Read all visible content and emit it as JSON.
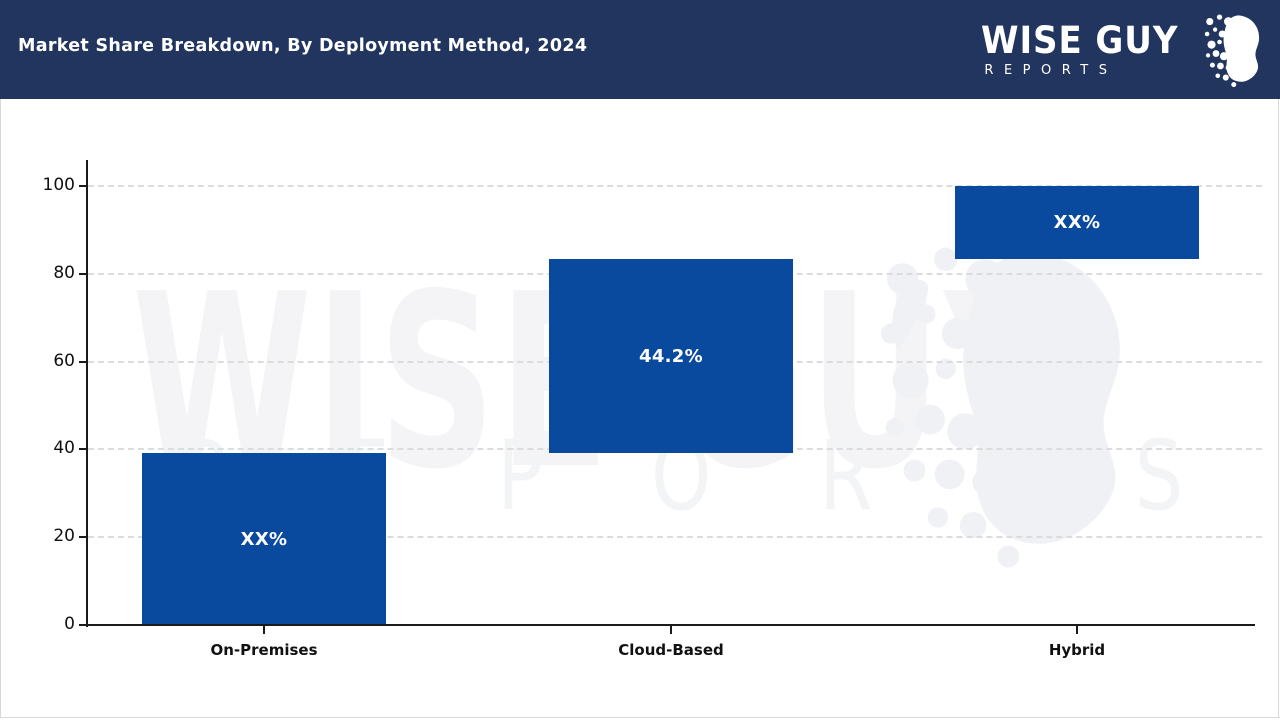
{
  "header": {
    "title": "Market Share Breakdown, By Deployment Method, 2024",
    "bg_color": "#22355e",
    "logo": {
      "line1": "WISE GUY",
      "line2": "REPORTS"
    }
  },
  "watermark": {
    "line1": "WISE GUY",
    "line2": "R E P O R T S"
  },
  "chart_data": {
    "type": "bar",
    "subtype": "waterfall-floating-bars",
    "title": "Market Share Breakdown, By Deployment Method, 2024",
    "categories": [
      "On-Premises",
      "Cloud-Based",
      "Hybrid"
    ],
    "segments": [
      {
        "category": "On-Premises",
        "label": "XX%",
        "start": 0,
        "end": 39.2
      },
      {
        "category": "Cloud-Based",
        "label": "44.2%",
        "start": 39.2,
        "end": 83.4
      },
      {
        "category": "Hybrid",
        "label": "XX%",
        "start": 83.4,
        "end": 100
      }
    ],
    "y_ticks": [
      0,
      20,
      40,
      60,
      80,
      100
    ],
    "ylim": [
      0,
      105.8
    ],
    "xlabel": "",
    "ylabel": "",
    "grid": "horizontal-dashed",
    "legend": "none",
    "bar_color": "#0a4a9e",
    "gridline_color": "#dcdcdc",
    "axis_color": "#1a1a1a"
  }
}
